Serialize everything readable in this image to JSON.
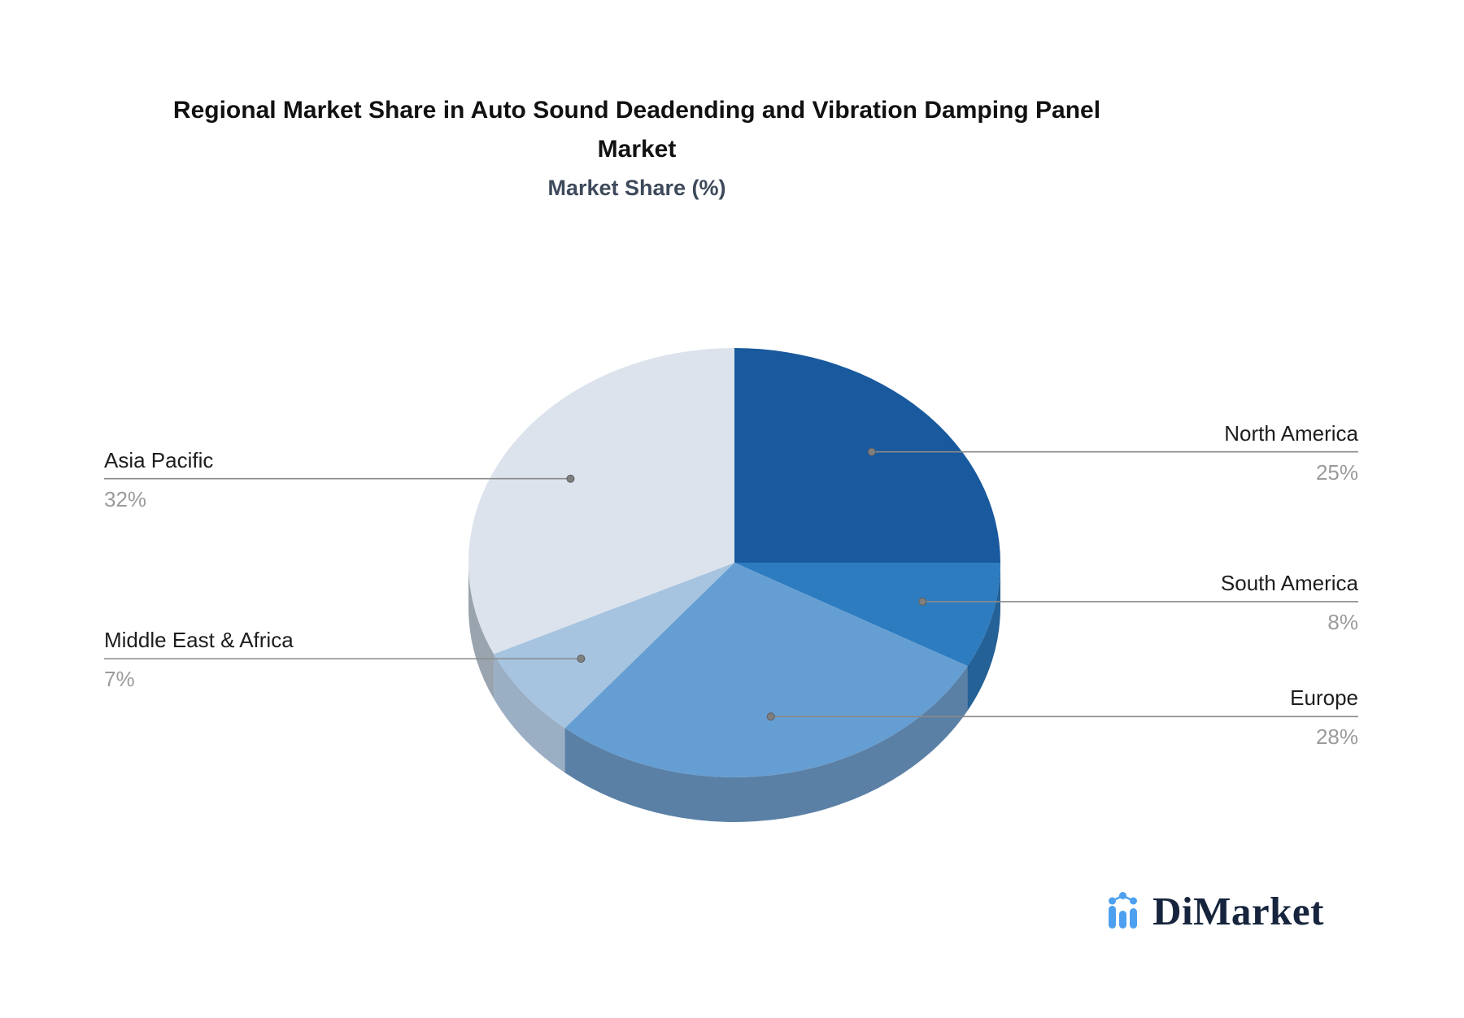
{
  "header": {
    "title_line1": "Regional Market Share in Auto Sound Deadending and Vibration Damping Panel",
    "title_line2": "Market",
    "subtitle": "Market Share (%)"
  },
  "chart_data": {
    "type": "pie",
    "style": "3d",
    "title": "Regional Market Share in Auto Sound Deadending and Vibration Damping Panel Market",
    "subtitle": "Market Share (%)",
    "units": "%",
    "direction": "clockwise",
    "start_angle_deg": 0,
    "legend": "none",
    "labels_position": "callouts",
    "slices": [
      {
        "label": "North America",
        "value": 25,
        "display": "25%",
        "color": "#19599D",
        "wall_color": "#12467C",
        "side": "right"
      },
      {
        "label": "South America",
        "value": 8,
        "display": "8%",
        "color": "#2E7CC0",
        "wall_color": "#246196",
        "side": "right"
      },
      {
        "label": "Europe",
        "value": 28,
        "display": "28%",
        "color": "#659ED2",
        "wall_color": "#5B80A6",
        "side": "right"
      },
      {
        "label": "Middle East & Africa",
        "value": 7,
        "display": "7%",
        "color": "#A6C4E0",
        "wall_color": "#9AAEC4",
        "side": "left"
      },
      {
        "label": "Asia Pacific",
        "value": 32,
        "display": "32%",
        "color": "#DCE3ED",
        "wall_color": "#9AA4AE",
        "side": "left"
      }
    ],
    "callout_line_color": "#8A8A8A",
    "callout_dot_color": "#7F7F7F"
  },
  "logo": {
    "text": "DiMarket",
    "icon": "bar-chart-icon",
    "icon_color": "#4DA0F0",
    "text_color": "#16253D"
  }
}
